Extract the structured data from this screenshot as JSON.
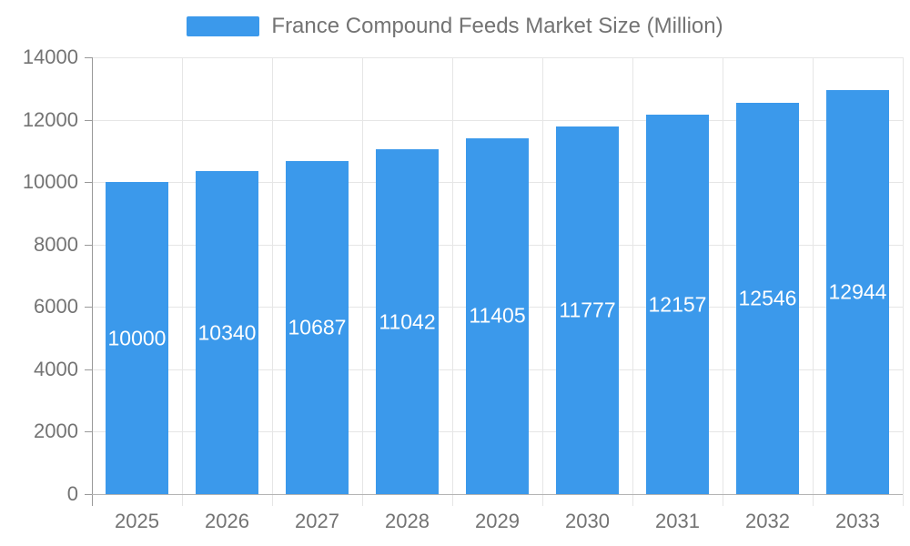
{
  "chart_data": {
    "type": "bar",
    "title": "France Compound Feeds Market Size (Million)",
    "legend_entries": [
      "France Compound Feeds Market Size (Million)"
    ],
    "legend_position": "top",
    "categories": [
      "2025",
      "2026",
      "2027",
      "2028",
      "2029",
      "2030",
      "2031",
      "2032",
      "2033"
    ],
    "values": [
      10000,
      10340,
      10687,
      11042,
      11405,
      11777,
      12157,
      12546,
      12944
    ],
    "xlabel": "",
    "ylabel": "",
    "ylim": [
      0,
      14000
    ],
    "yticks": [
      0,
      2000,
      4000,
      6000,
      8000,
      10000,
      12000,
      14000
    ],
    "grid": true,
    "bar_color": "#3B99EB",
    "value_label_color": "#FFFFFF",
    "axis_text_color": "#737373",
    "gridline_color": "#E6E6E6",
    "y_axis_line_color": "#999999",
    "x_axis_line_color": "#B3B3B3"
  }
}
